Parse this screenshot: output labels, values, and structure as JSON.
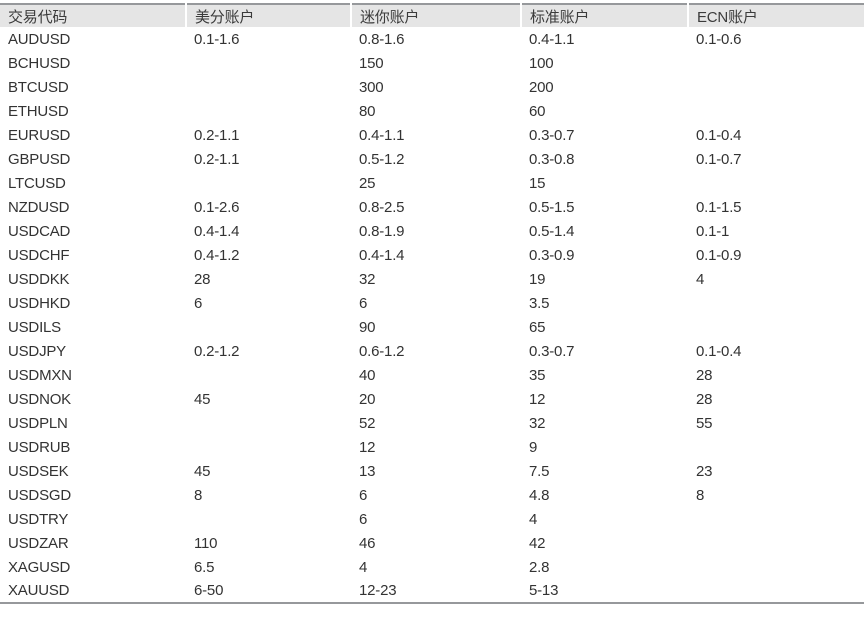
{
  "table": {
    "columns": [
      {
        "key": "symbol",
        "label": "交易代码"
      },
      {
        "key": "cent",
        "label": "美分账户"
      },
      {
        "key": "mini",
        "label": "迷你账户"
      },
      {
        "key": "standard",
        "label": "标准账户"
      },
      {
        "key": "ecn",
        "label": "ECN账户"
      }
    ],
    "rows": [
      [
        "AUDUSD",
        "0.1-1.6",
        "0.8-1.6",
        "0.4-1.1",
        "0.1-0.6"
      ],
      [
        "BCHUSD",
        "",
        "150",
        "100",
        ""
      ],
      [
        "BTCUSD",
        "",
        "300",
        "200",
        ""
      ],
      [
        "ETHUSD",
        "",
        "80",
        "60",
        ""
      ],
      [
        "EURUSD",
        "0.2-1.1",
        "0.4-1.1",
        "0.3-0.7",
        "0.1-0.4"
      ],
      [
        "GBPUSD",
        "0.2-1.1",
        "0.5-1.2",
        "0.3-0.8",
        "0.1-0.7"
      ],
      [
        "LTCUSD",
        "",
        "25",
        "15",
        ""
      ],
      [
        "NZDUSD",
        "0.1-2.6",
        "0.8-2.5",
        "0.5-1.5",
        "0.1-1.5"
      ],
      [
        "USDCAD",
        "0.4-1.4",
        "0.8-1.9",
        "0.5-1.4",
        "0.1-1"
      ],
      [
        "USDCHF",
        "0.4-1.2",
        "0.4-1.4",
        "0.3-0.9",
        "0.1-0.9"
      ],
      [
        "USDDKK",
        "28",
        "32",
        "19",
        "4"
      ],
      [
        "USDHKD",
        "6",
        "6",
        "3.5",
        ""
      ],
      [
        "USDILS",
        "",
        "90",
        "65",
        ""
      ],
      [
        "USDJPY",
        "0.2-1.2",
        "0.6-1.2",
        "0.3-0.7",
        "0.1-0.4"
      ],
      [
        "USDMXN",
        "",
        "40",
        "35",
        "28"
      ],
      [
        "USDNOK",
        "45",
        "20",
        "12",
        "28"
      ],
      [
        "USDPLN",
        "",
        "52",
        "32",
        "55"
      ],
      [
        "USDRUB",
        "",
        "12",
        "9",
        ""
      ],
      [
        "USDSEK",
        "45",
        "13",
        "7.5",
        "23"
      ],
      [
        "USDSGD",
        "8",
        "6",
        "4.8",
        "8"
      ],
      [
        "USDTRY",
        "",
        "6",
        "4",
        ""
      ],
      [
        "USDZAR",
        "110",
        "46",
        "42",
        ""
      ],
      [
        "XAGUSD",
        "6.5",
        "4",
        "2.8",
        ""
      ],
      [
        "XAUUSD",
        "6-50",
        "12-23",
        "5-13",
        ""
      ]
    ]
  },
  "colors": {
    "header_bg": "#e5e5e5",
    "table_border": "#96989b",
    "header_text": "#3b3b3b",
    "body_text": "#333333"
  },
  "chart_data": {
    "type": "table",
    "title": "",
    "columns": [
      "交易代码",
      "美分账户",
      "迷你账户",
      "标准账户",
      "ECN账户"
    ],
    "rows": [
      [
        "AUDUSD",
        "0.1-1.6",
        "0.8-1.6",
        "0.4-1.1",
        "0.1-0.6"
      ],
      [
        "BCHUSD",
        "",
        "150",
        "100",
        ""
      ],
      [
        "BTCUSD",
        "",
        "300",
        "200",
        ""
      ],
      [
        "ETHUSD",
        "",
        "80",
        "60",
        ""
      ],
      [
        "EURUSD",
        "0.2-1.1",
        "0.4-1.1",
        "0.3-0.7",
        "0.1-0.4"
      ],
      [
        "GBPUSD",
        "0.2-1.1",
        "0.5-1.2",
        "0.3-0.8",
        "0.1-0.7"
      ],
      [
        "LTCUSD",
        "",
        "25",
        "15",
        ""
      ],
      [
        "NZDUSD",
        "0.1-2.6",
        "0.8-2.5",
        "0.5-1.5",
        "0.1-1.5"
      ],
      [
        "USDCAD",
        "0.4-1.4",
        "0.8-1.9",
        "0.5-1.4",
        "0.1-1"
      ],
      [
        "USDCHF",
        "0.4-1.2",
        "0.4-1.4",
        "0.3-0.9",
        "0.1-0.9"
      ],
      [
        "USDDKK",
        "28",
        "32",
        "19",
        "4"
      ],
      [
        "USDHKD",
        "6",
        "6",
        "3.5",
        ""
      ],
      [
        "USDILS",
        "",
        "90",
        "65",
        ""
      ],
      [
        "USDJPY",
        "0.2-1.2",
        "0.6-1.2",
        "0.3-0.7",
        "0.1-0.4"
      ],
      [
        "USDMXN",
        "",
        "40",
        "35",
        "28"
      ],
      [
        "USDNOK",
        "45",
        "20",
        "12",
        "28"
      ],
      [
        "USDPLN",
        "",
        "52",
        "32",
        "55"
      ],
      [
        "USDRUB",
        "",
        "12",
        "9",
        ""
      ],
      [
        "USDSEK",
        "45",
        "13",
        "7.5",
        "23"
      ],
      [
        "USDSGD",
        "8",
        "6",
        "4.8",
        "8"
      ],
      [
        "USDTRY",
        "",
        "6",
        "4",
        ""
      ],
      [
        "USDZAR",
        "110",
        "46",
        "42",
        ""
      ],
      [
        "XAGUSD",
        "6.5",
        "4",
        "2.8",
        ""
      ],
      [
        "XAUUSD",
        "6-50",
        "12-23",
        "5-13",
        ""
      ]
    ]
  }
}
